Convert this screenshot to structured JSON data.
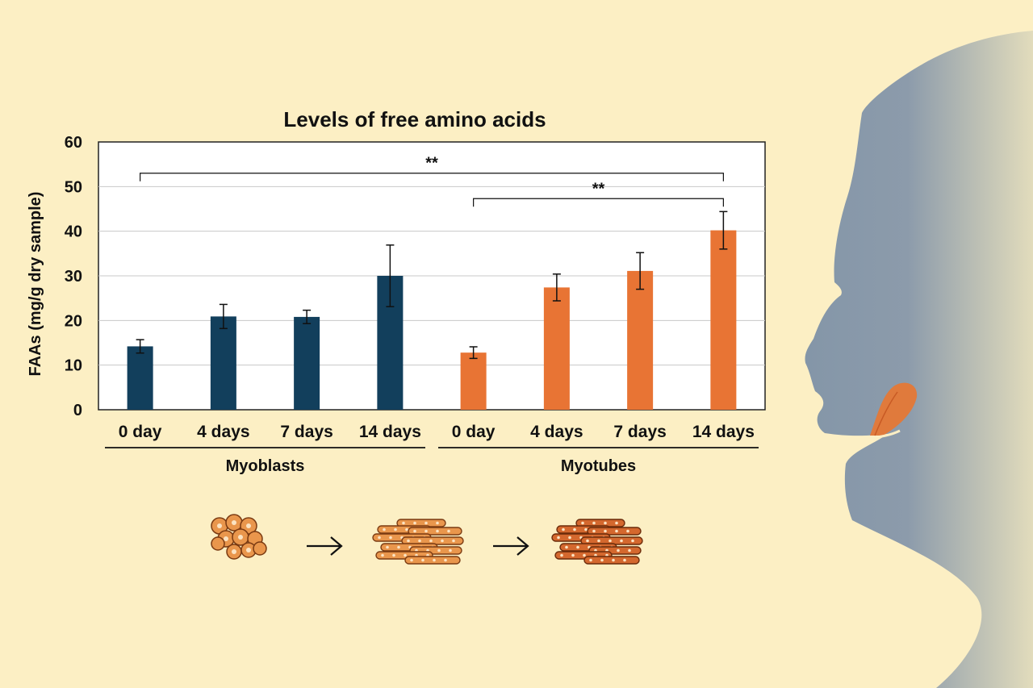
{
  "colors": {
    "background": "#fcefc4",
    "myoblasts": "#123f5c",
    "myotubes": "#e87434",
    "face": "#8496a8"
  },
  "icons": [
    "head-silhouette-icon",
    "tongue-icon",
    "myoblast-cells-icon",
    "arrow-right-icon",
    "myotube-cells-icon",
    "mature-myotube-cells-icon"
  ],
  "chart_data": {
    "type": "bar",
    "title": "Levels of free amino acids",
    "ylabel": "FAAs (mg/g dry sample)",
    "xlabel": "",
    "ylim": [
      0,
      60
    ],
    "yticks": [
      "0",
      "10",
      "20",
      "30",
      "40",
      "50",
      "60"
    ],
    "grid": true,
    "categories": [
      "0 day",
      "4 days",
      "7 days",
      "14 days",
      "0 day",
      "4 days",
      "7 days",
      "14 days"
    ],
    "groups": [
      {
        "name": "Myoblasts",
        "bar_indices": [
          0,
          1,
          2,
          3
        ]
      },
      {
        "name": "Myotubes",
        "bar_indices": [
          4,
          5,
          6,
          7
        ]
      }
    ],
    "values": [
      14.2,
      20.9,
      20.8,
      30.0,
      12.8,
      27.4,
      31.1,
      40.2
    ],
    "errors": [
      1.5,
      2.7,
      1.5,
      6.9,
      1.3,
      3.0,
      4.1,
      4.2
    ],
    "significance": [
      {
        "from": 0,
        "to": 7,
        "label": "**",
        "level": 53
      },
      {
        "from": 4,
        "to": 7,
        "label": "**",
        "level": 47.3
      }
    ]
  }
}
